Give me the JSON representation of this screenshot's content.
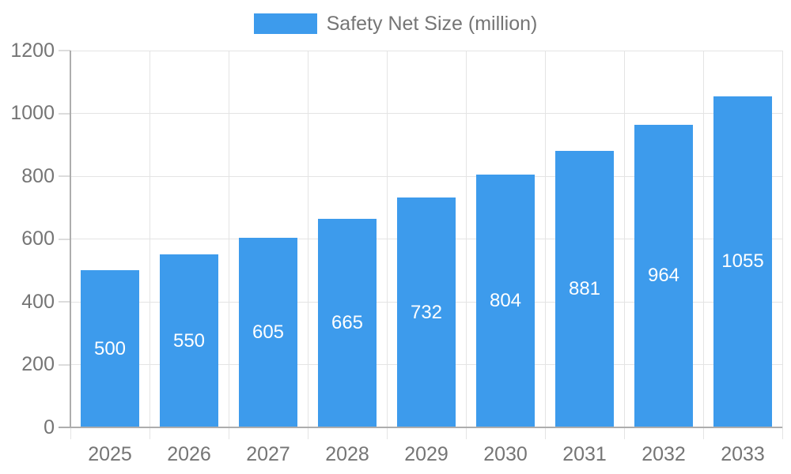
{
  "chart_data": {
    "type": "bar",
    "title": "Safety Net Size (million)",
    "categories": [
      "2025",
      "2026",
      "2027",
      "2028",
      "2029",
      "2030",
      "2031",
      "2032",
      "2033"
    ],
    "series": [
      {
        "name": "Safety Net Size (million)",
        "values": [
          500,
          550,
          605,
          665,
          732,
          804,
          881,
          964,
          1055
        ]
      }
    ],
    "xlabel": "",
    "ylabel": "",
    "ylim": [
      0,
      1200
    ],
    "yticks": [
      0,
      200,
      400,
      600,
      800,
      1000,
      1200
    ],
    "grid": true,
    "legend_position": "top-center",
    "value_labels": "inside-center",
    "colors": {
      "bar": "#3d9bec",
      "value_label": "#ffffff",
      "axis_text": "#757575",
      "grid_line": "#e4e4e4",
      "tick_mark": "#dcdcdc",
      "axis_line": "#adadad",
      "background": "#ffffff"
    }
  },
  "legend": {
    "items": [
      {
        "label": "Safety Net Size (million)",
        "swatch_color": "#3d9bec"
      }
    ]
  }
}
